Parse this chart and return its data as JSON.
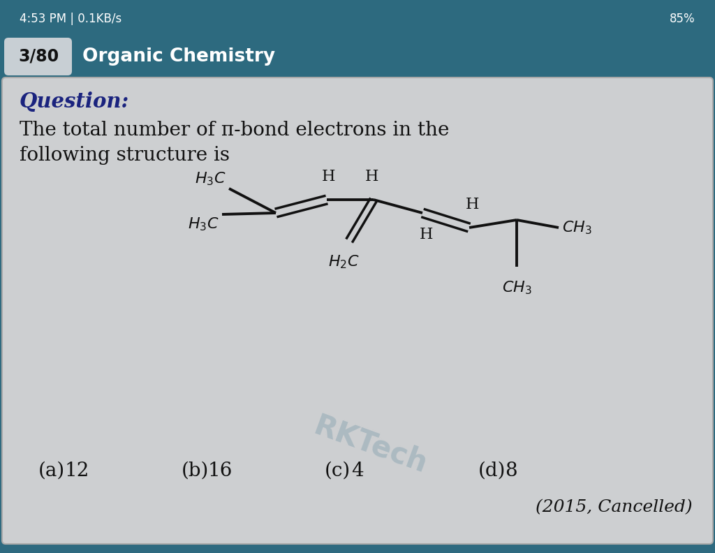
{
  "bg_color": "#2e6a80",
  "status_bar_text": "4:53 PM | 0.1KB/s",
  "status_right": "85%",
  "header_bg": "#2d6a7f",
  "badge_text": "3/80",
  "badge_bg": "#c8cfd4",
  "subject_text": "Organic Chemistry",
  "subject_color": "#ffffff",
  "card_bg": "#cdcfd1",
  "question_label": "Question:",
  "question_label_color": "#1a237e",
  "question_text_line1": "The total number of π-bond electrons in the",
  "question_text_line2": "following structure is",
  "question_color": "#111111",
  "options_labels": [
    "(a)",
    "(b)",
    "(c)",
    "(d)"
  ],
  "options_values": [
    "12",
    "16",
    "4",
    "8"
  ],
  "year_note": "(2015, Cancelled)",
  "watermark": "RKTech",
  "mol_color": "#111111"
}
